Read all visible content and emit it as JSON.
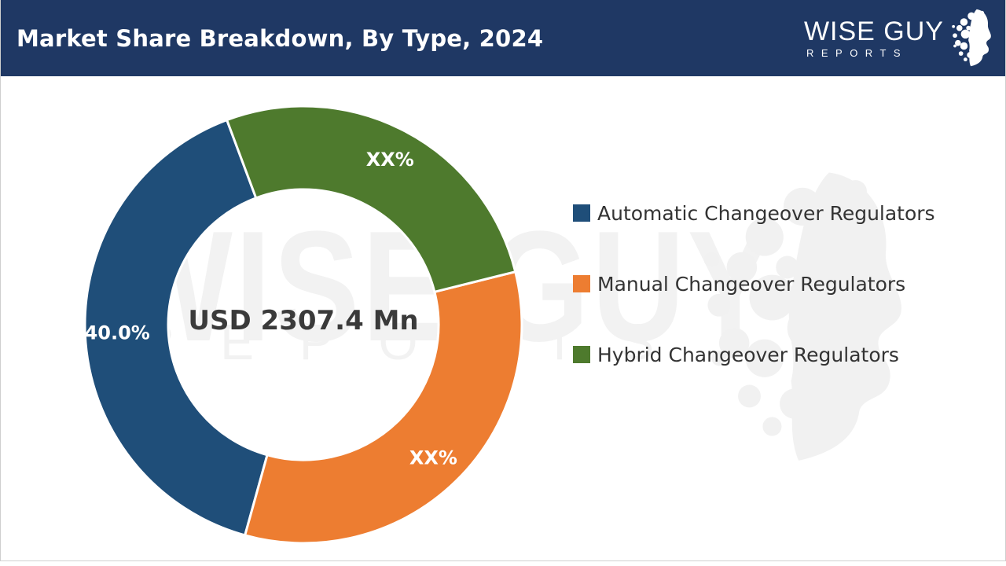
{
  "header": {
    "title": "Market Share Breakdown, By Type, 2024",
    "logo": {
      "line1": "WISE GUY",
      "line2": "REPORTS"
    }
  },
  "chart_data": {
    "type": "pie",
    "subtype": "donut",
    "title": "Market Share Breakdown, By Type, 2024",
    "center_label": "USD 2307.4 Mn",
    "start_angle_deg": 110.5,
    "legend_position": "right",
    "slices": [
      {
        "name": "Automatic Changeover Regulators",
        "value_pct": 40.0,
        "label": "40.0%",
        "color": "#1f4e79"
      },
      {
        "name": "Manual Changeover Regulators",
        "value_pct": 33.2,
        "label": "XX%",
        "color": "#ed7d31"
      },
      {
        "name": "Hybrid Changeover Regulators",
        "value_pct": 26.8,
        "label": "XX%",
        "color": "#4e7a2d"
      }
    ]
  },
  "watermark": {
    "line1": "WISE GUY",
    "line2": "REPORTS"
  },
  "colors": {
    "header_bg": "#1f3864",
    "title_text": "#ffffff",
    "center_text": "#3a3a3a",
    "legend_text": "#333333",
    "watermark": "#f2f2f2",
    "border": "#cfcfcf",
    "slice_stroke": "#ffffff"
  }
}
